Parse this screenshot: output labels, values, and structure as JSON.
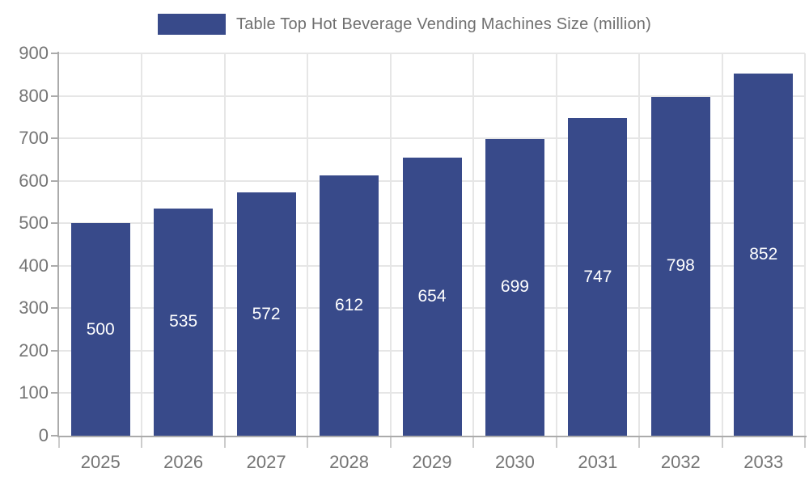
{
  "chart_data": {
    "type": "bar",
    "title": "Table Top Hot Beverage Vending Machines Size (million)",
    "categories": [
      "2025",
      "2026",
      "2027",
      "2028",
      "2029",
      "2030",
      "2031",
      "2032",
      "2033"
    ],
    "values": [
      500,
      535,
      572,
      612,
      654,
      699,
      747,
      798,
      852
    ],
    "series_name": "Table Top Hot Beverage Vending Machines Size (million)",
    "xlabel": "",
    "ylabel": "",
    "ylim": [
      0,
      900
    ],
    "yticks": [
      0,
      100,
      200,
      300,
      400,
      500,
      600,
      700,
      800,
      900
    ],
    "grid": true,
    "legend_position": "top-center",
    "value_label_position": "inside-middle",
    "colors": {
      "bar": "#384a8a",
      "value_label": "#ffffff",
      "axis": "#ababab",
      "gridline": "#e6e6e6",
      "tick_minor": "#cccccc",
      "axis_label_text": "#747474",
      "legend_text": "#6f6f6f",
      "background": "#ffffff"
    }
  }
}
